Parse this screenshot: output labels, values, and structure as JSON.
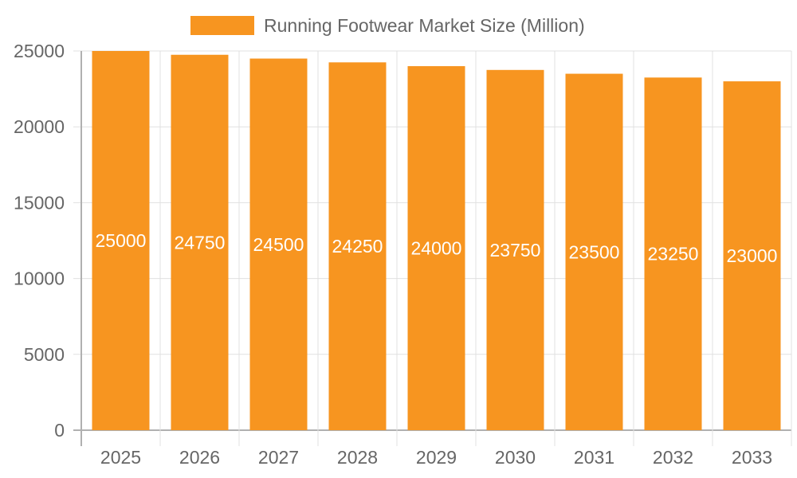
{
  "legend": {
    "label": "Running Footwear Market Size (Million)",
    "color": "#f79520"
  },
  "chart_data": {
    "type": "bar",
    "title": "",
    "categories": [
      "2025",
      "2026",
      "2027",
      "2028",
      "2029",
      "2030",
      "2031",
      "2032",
      "2033"
    ],
    "series": [
      {
        "name": "Running Footwear Market Size (Million)",
        "values": [
          25000,
          24750,
          24500,
          24250,
          24000,
          23750,
          23500,
          23250,
          23000
        ],
        "color": "#f79520"
      }
    ],
    "xlabel": "",
    "ylabel": "",
    "ylim": [
      0,
      25000
    ],
    "yticks": [
      0,
      5000,
      10000,
      15000,
      20000,
      25000
    ],
    "grid": true,
    "legend_position": "top",
    "data_labels": true
  }
}
